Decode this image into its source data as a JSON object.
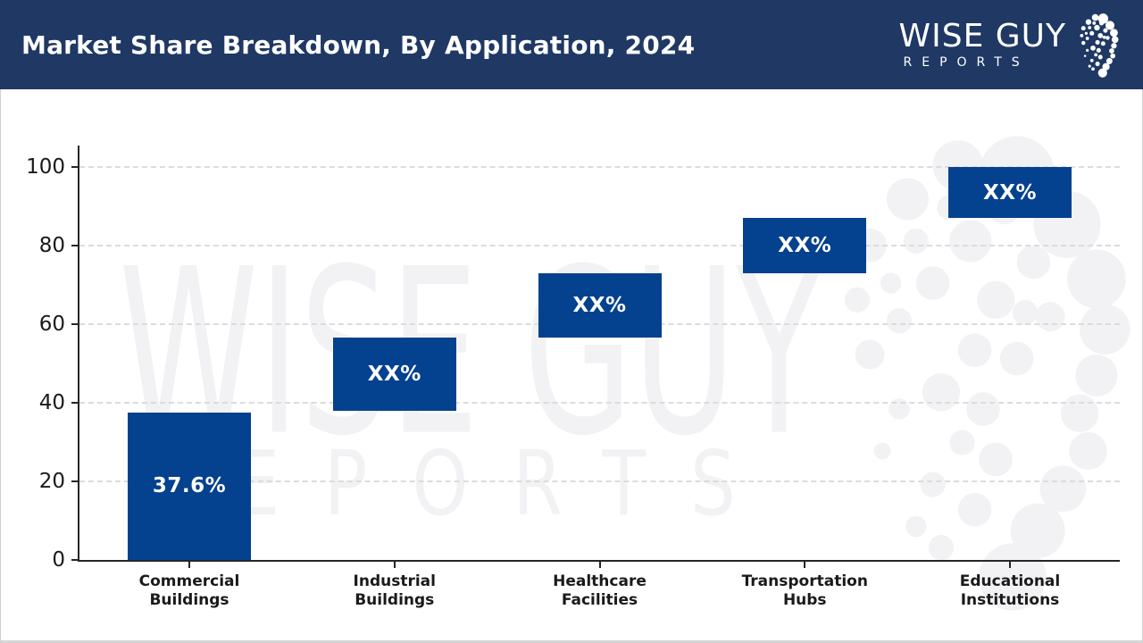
{
  "header": {
    "title": "Market Share Breakdown, By Application, 2024",
    "bg_color": "#1f3864",
    "logo": {
      "line1": "WISE GUY",
      "line2": "REPORTS"
    }
  },
  "watermark": {
    "line1": "WISE GUY",
    "line2": "REPORTS"
  },
  "chart_data": {
    "type": "bar",
    "subtype": "waterfall",
    "title": "Market Share Breakdown, By Application, 2024",
    "categories": [
      [
        "Commercial",
        "Buildings"
      ],
      [
        "Industrial",
        "Buildings"
      ],
      [
        "Healthcare",
        "Facilities"
      ],
      [
        "Transportation",
        "Hubs"
      ],
      [
        "Educational",
        "Institutions"
      ]
    ],
    "segments": [
      {
        "start": 0,
        "end": 37.6,
        "label": "37.6%"
      },
      {
        "start": 38,
        "end": 56.5,
        "label": "XX%"
      },
      {
        "start": 56.5,
        "end": 73,
        "label": "XX%"
      },
      {
        "start": 73,
        "end": 87,
        "label": "XX%"
      },
      {
        "start": 87,
        "end": 100,
        "label": "XX%"
      }
    ],
    "yticks": [
      0,
      20,
      40,
      60,
      80,
      100
    ],
    "ylim": [
      0,
      105
    ],
    "xlabel": "",
    "ylabel": "",
    "legend": "none",
    "grid": "horizontal-dashed",
    "bar_color": "#04418f",
    "bar_label_color": "#ffffff",
    "axis_color": "#262626",
    "grid_color": "#dcdcdc",
    "tick_label_color": "#1a1a1a"
  }
}
